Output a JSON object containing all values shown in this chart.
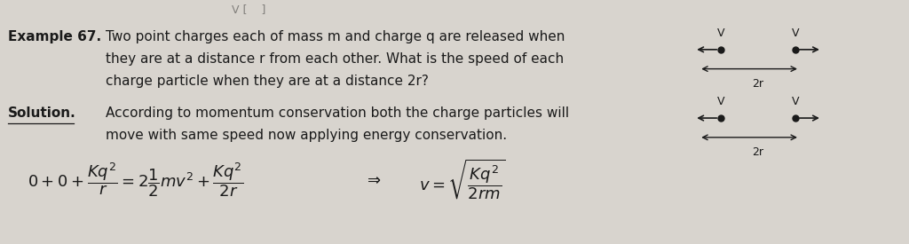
{
  "background_color": "#d8d4ce",
  "example_label": "Example 67.",
  "example_text_line1": "Two point charges each of mass m and charge q are released when",
  "example_text_line2": "they are at a distance r from each other. What is the speed of each",
  "example_text_line3": "charge particle when they are at a distance 2r?",
  "solution_label": "Solution.",
  "solution_text_line1": "According to momentum conservation both the charge particles will",
  "solution_text_line2": "move with same speed now applying energy conservation.",
  "text_color": "#1a1a1a",
  "font_size_main": 11,
  "font_size_eq": 13,
  "font_size_diag": 9,
  "top_label": "V [    ]"
}
